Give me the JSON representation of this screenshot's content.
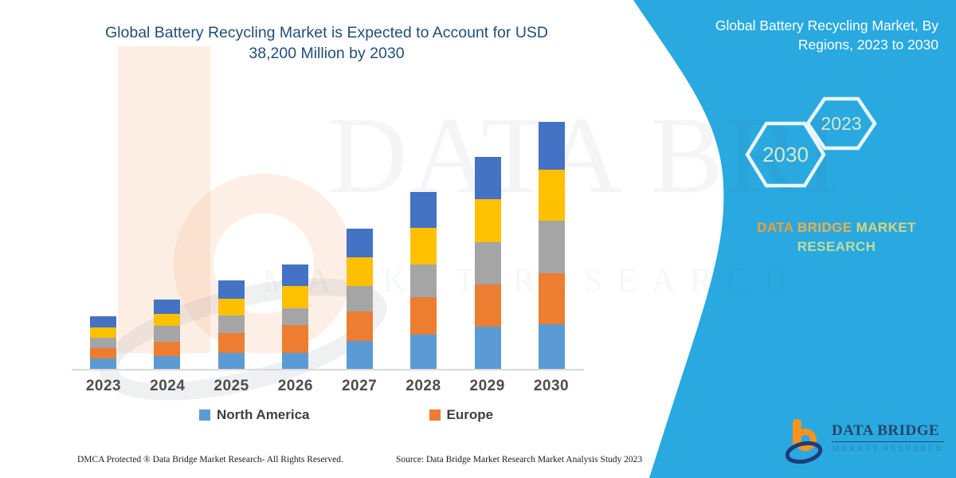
{
  "header": {
    "title_line1": "Global Battery Recycling Market is Expected to Account for USD",
    "title_line2": "38,200 Million by 2030"
  },
  "side_panel": {
    "color": "#29A9E0",
    "title_line1": "Global Battery Recycling Market, By",
    "title_line2": "Regions, 2023 to 2030",
    "hexagon_left": "2030",
    "hexagon_right": "2023",
    "brand_words": [
      "DATA",
      "BRIDGE",
      "MARKET",
      "RESEARCH"
    ]
  },
  "chart_data": {
    "type": "bar",
    "stacked": true,
    "title": "Global Battery Recycling Market is Expected to Account for USD 38,200 Million by 2030",
    "value_unit": "USD Million",
    "categories": [
      "2023",
      "2024",
      "2025",
      "2026",
      "2027",
      "2028",
      "2029",
      "2030"
    ],
    "series": [
      {
        "name": "North America",
        "color": "#5B9BD5",
        "values": [
          1600,
          2000,
          2500,
          2500,
          4350,
          5300,
          6550,
          6900
        ]
      },
      {
        "name": "Europe",
        "color": "#ED7D31",
        "values": [
          1600,
          2200,
          3100,
          4300,
          4550,
          5750,
          6550,
          7900
        ]
      },
      {
        "name": "",
        "color": "#A5A5A5",
        "values": [
          1600,
          2450,
          2600,
          2600,
          3950,
          5050,
          6450,
          8150
        ]
      },
      {
        "name": "",
        "color": "#FFC000",
        "values": [
          1650,
          1850,
          2600,
          3450,
          4450,
          5700,
          6650,
          7900
        ]
      },
      {
        "name": "",
        "color": "#4472C4",
        "values": [
          1750,
          2250,
          2850,
          3350,
          4350,
          5550,
          6550,
          7350
        ]
      }
    ],
    "totals": [
      8200,
      10750,
      13650,
      16200,
      21650,
      27350,
      32750,
      38200
    ],
    "ylim": [
      0,
      38200
    ],
    "gridlines": false,
    "legend_position": "bottom",
    "visible_legend": [
      "North America",
      "Europe"
    ]
  },
  "legend": [
    {
      "label": "North America",
      "color": "#5B9BD5"
    },
    {
      "label": "Europe",
      "color": "#ED7D31"
    }
  ],
  "watermark": {
    "large": "DATA BRI",
    "small": "MARKET RESEARCH"
  },
  "logo": {
    "line1": "DATA BRIDGE",
    "line2": "MARKET RESEARCH"
  },
  "footer": {
    "left": "DMCA Protected ® Data Bridge Market Research-  All Rights Reserved.",
    "right": "Source: Data Bridge Market Research  Market Analysis Study 2023"
  }
}
